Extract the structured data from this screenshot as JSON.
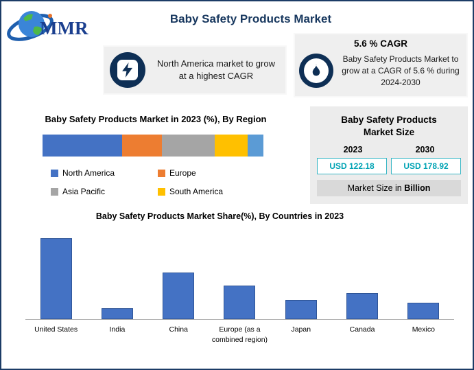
{
  "page": {
    "title": "Baby Safety Products Market"
  },
  "logo": {
    "text": "MMR"
  },
  "callouts": {
    "highlight": {
      "icon": "lightning-bolt",
      "text": "North America market to grow at a highest CAGR"
    },
    "cagr": {
      "header": "5.6 % CAGR",
      "icon": "flame",
      "text": "Baby Safety Products Market to grow at a CAGR of 5.6 % during 2024-2030"
    }
  },
  "market_size": {
    "title": "Baby Safety Products Market Size",
    "years": [
      "2023",
      "2030"
    ],
    "values": [
      "USD 122.18",
      "USD 178.92"
    ],
    "footer_prefix": "Market Size in ",
    "footer_bold": "Billion",
    "accent_color": "#00a3b4"
  },
  "chart_data": [
    {
      "type": "bar",
      "subtype": "stacked-horizontal",
      "title": "Baby Safety Products Market in 2023 (%), By Region",
      "categories": [
        "North America",
        "Europe",
        "Asia Pacific",
        "South America",
        "Other"
      ],
      "values": [
        36,
        18,
        24,
        15,
        7
      ],
      "colors": [
        "#4472c4",
        "#ed7d31",
        "#a5a5a5",
        "#ffc000",
        "#5b9bd5"
      ],
      "legend": [
        "North America",
        "Europe",
        "Asia Pacific",
        "South America"
      ],
      "legend_position": "below",
      "grid": false
    },
    {
      "type": "bar",
      "title": "Baby Safety Products Market Share(%), By Countries in 2023",
      "categories": [
        "United States",
        "India",
        "China",
        "Europe (as a combined region)",
        "Japan",
        "Canada",
        "Mexico"
      ],
      "values": [
        40,
        5.5,
        23,
        16.5,
        9.5,
        13,
        8
      ],
      "bar_color": "#4472c4",
      "xlabel": "",
      "ylabel": "",
      "ylim": [
        0,
        45
      ],
      "grid": false,
      "legend_position": "none"
    }
  ]
}
